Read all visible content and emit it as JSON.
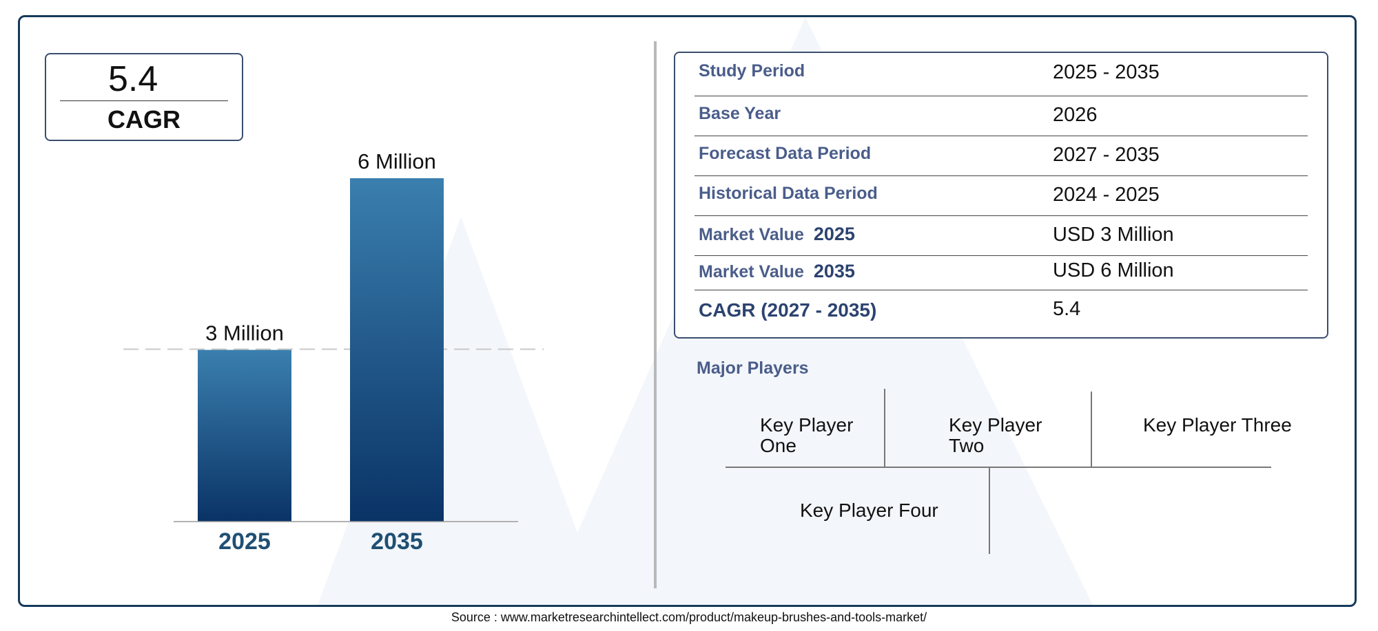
{
  "cagr_badge": {
    "value": "5.4",
    "label": "CAGR"
  },
  "chart_data": {
    "type": "bar",
    "categories": [
      "2025",
      "2035"
    ],
    "values": [
      3,
      6
    ],
    "value_labels": [
      "3 Million",
      "6 Million"
    ],
    "unit": "Million",
    "ylim": [
      0,
      6
    ],
    "grid": false,
    "reference_line": {
      "value": 3,
      "style": "dashed"
    },
    "bar_color": "#1f5a8e"
  },
  "summary_table": {
    "rows": [
      {
        "label": "Study Period",
        "year": "",
        "value": "2025 - 2035"
      },
      {
        "label": "Base Year",
        "year": "",
        "value": "2026"
      },
      {
        "label": "Forecast Data Period",
        "year": "",
        "value": "2027 - 2035"
      },
      {
        "label": "Historical Data Period",
        "year": "",
        "value": "2024 - 2025"
      },
      {
        "label": "Market Value",
        "year": "2025",
        "value": "USD 3 Million"
      },
      {
        "label": "Market Value",
        "year": "2035",
        "value": "USD 6 Million"
      },
      {
        "label": "CAGR (2027 - 2035)",
        "year": "",
        "value": "5.4"
      }
    ]
  },
  "major_players": {
    "title": "Major Players",
    "players": [
      "Key Player One",
      "Key Player Two",
      "Key Player Three",
      "Key Player Four"
    ]
  },
  "source": "Source : www.marketresearchintellect.com/product/makeup-brushes-and-tools-market/",
  "colors": {
    "frame": "#163a5a",
    "label": "#4a5d8a",
    "bar_top": "#3a7fae",
    "bar_bottom": "#0a3366",
    "axis_label": "#1f4f73"
  }
}
